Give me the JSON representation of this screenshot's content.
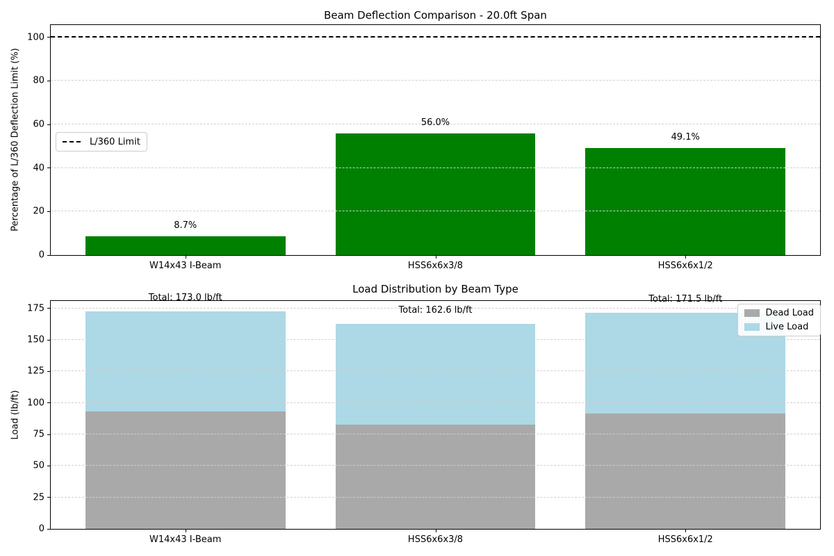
{
  "figure": {
    "background": "#ffffff"
  },
  "chart_data": [
    {
      "type": "bar",
      "title": "Beam Deflection Comparison - 20.0ft Span",
      "ylabel": "Percentage of L/360 Deflection Limit (%)",
      "xlabel": "",
      "categories": [
        "W14x43 I-Beam",
        "HSS6x6x3/8",
        "HSS6x6x1/2"
      ],
      "values": [
        8.7,
        56.0,
        49.1
      ],
      "bar_labels": [
        "8.7%",
        "56.0%",
        "49.1%"
      ],
      "bar_color": "#008000",
      "yticks": [
        0,
        20,
        40,
        60,
        80,
        100
      ],
      "ylim": [
        0,
        105.7
      ],
      "grid": true,
      "ref_line": {
        "value": 100,
        "color": "#000000",
        "style": "dashed"
      },
      "legend": {
        "position": "center left",
        "label": "L/360 Limit"
      }
    },
    {
      "type": "bar",
      "stacked": true,
      "title": "Load Distribution by Beam Type",
      "ylabel": "Load (lb/ft)",
      "xlabel": "",
      "categories": [
        "W14x43 I-Beam",
        "HSS6x6x3/8",
        "HSS6x6x1/2"
      ],
      "series": [
        {
          "name": "Dead Load",
          "color": "#a9a9a9",
          "values": [
            93.0,
            82.6,
            91.5
          ]
        },
        {
          "name": "Live Load",
          "color": "#add8e6",
          "values": [
            80.0,
            80.0,
            80.0
          ]
        }
      ],
      "totals": [
        173.0,
        162.6,
        171.5
      ],
      "total_labels": [
        "Total: 173.0 lb/ft",
        "Total: 162.6 lb/ft",
        "Total: 171.5 lb/ft"
      ],
      "yticks": [
        0,
        25,
        50,
        75,
        100,
        125,
        150,
        175
      ],
      "ylim": [
        0,
        181
      ],
      "grid": true,
      "legend": {
        "position": "upper right"
      }
    }
  ]
}
